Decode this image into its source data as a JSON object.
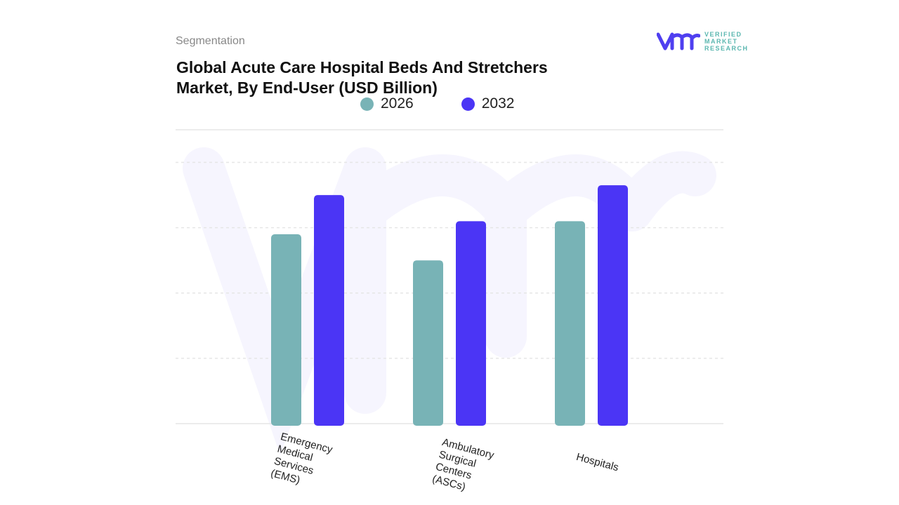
{
  "header": {
    "section": "Segmentation",
    "title_line1": "Global Acute Care Hospital Beds And Stretchers",
    "title_line2": "Market, By End-User (USD Billion)"
  },
  "logo": {
    "line1": "VERIFIED",
    "line2": "MARKET",
    "line3": "RESEARCH",
    "colors": {
      "mark": "#4f3ff0",
      "text": "#5bb7b0"
    }
  },
  "chart_data": {
    "type": "bar",
    "categories": [
      "Emergency Medical Services (EMS)",
      "Ambulatory Surgical Centers (ASCs)",
      "Hospitals"
    ],
    "series": [
      {
        "name": "2026",
        "color": "#78b3b6",
        "values": [
          2.9,
          2.5,
          3.1
        ]
      },
      {
        "name": "2032",
        "color": "#4b35f5",
        "values": [
          3.5,
          3.1,
          3.65
        ]
      }
    ],
    "ylim": [
      0,
      4.5
    ],
    "grid": true,
    "legend": "top"
  }
}
